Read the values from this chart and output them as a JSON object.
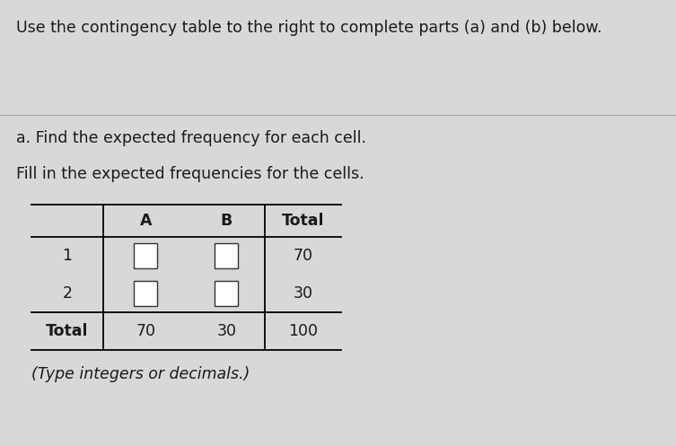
{
  "title_text": "Use the contingency table to the right to complete parts (a) and (b) below.",
  "part_a_text": "a. Find the expected frequency for each cell.",
  "fill_text": "Fill in the expected frequencies for the cells.",
  "note_text": "(Type integers or decimals.)",
  "bg_color": "#d8d8d8",
  "text_color": "#1a1a1a",
  "title_fontsize": 12.5,
  "body_fontsize": 12.5,
  "table_fontsize": 12.5
}
